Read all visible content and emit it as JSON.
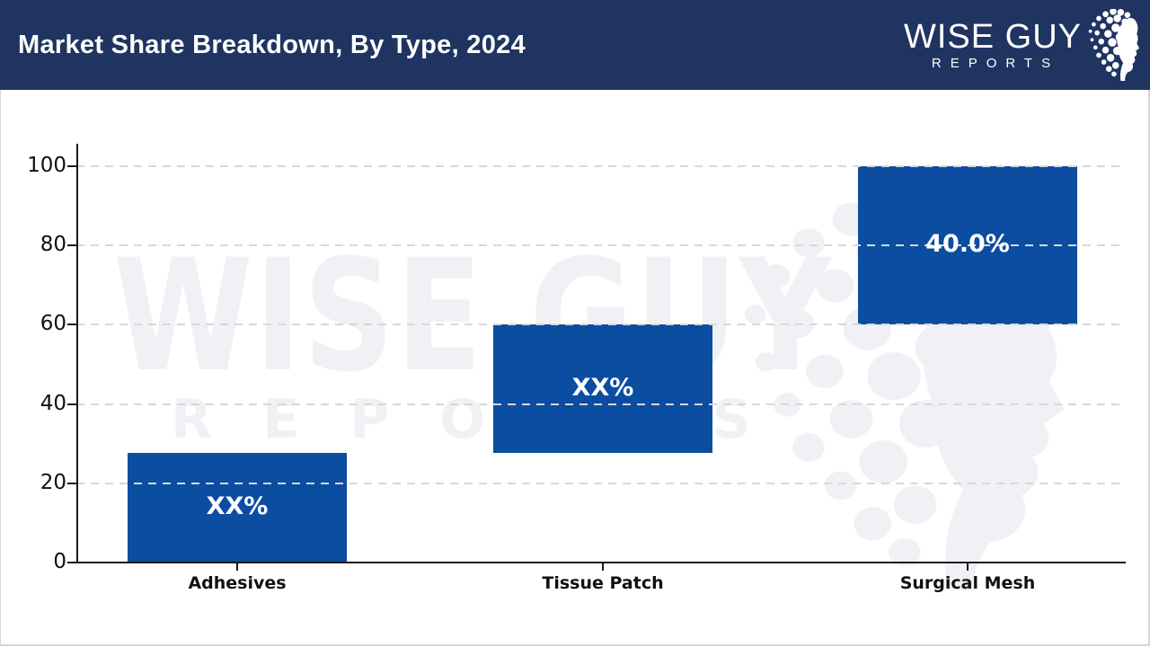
{
  "page": {
    "background": "#ffffff",
    "frame_color": "#d6d6d6"
  },
  "header": {
    "background": "#1f3460",
    "title": "Market Share Breakdown, By Type, 2024",
    "title_color": "#ffffff",
    "logo": {
      "wordmark": "WISE GUY",
      "subtitle": "REPORTS",
      "icon": "dotted-head-profile-icon",
      "color": "#ffffff"
    }
  },
  "watermark": {
    "wordmark": "WISE GUY",
    "subtitle": "REPORTS",
    "icon": "dotted-head-profile-icon",
    "color": "#f0f1f4"
  },
  "chart_data": {
    "type": "bar",
    "subtype": "waterfall_market_share_breakdown",
    "title": "Market Share Breakdown, By Type, 2024",
    "categories": [
      "Adhesives",
      "Tissue Patch",
      "Surgical Mesh"
    ],
    "bars": [
      {
        "category": "Adhesives",
        "base": 0,
        "top": 27.7,
        "label": "XX%"
      },
      {
        "category": "Tissue Patch",
        "base": 27.7,
        "top": 60.0,
        "label": "XX%"
      },
      {
        "category": "Surgical Mesh",
        "base": 60.0,
        "top": 100.0,
        "label": "40.0%"
      }
    ],
    "ylim": [
      0,
      100
    ],
    "yticks": [
      0,
      20,
      40,
      60,
      80,
      100
    ],
    "xlabel": "",
    "ylabel": "",
    "grid": {
      "axis": "y",
      "style": "dashed",
      "color": "#d8d8d8",
      "drawn_over_bars": true
    },
    "legend": "none",
    "bar_color": "#0b4da1",
    "bar_label_color": "#ffffff",
    "axis_color": "#1a1a1a",
    "tick_label_color": "#111111"
  }
}
